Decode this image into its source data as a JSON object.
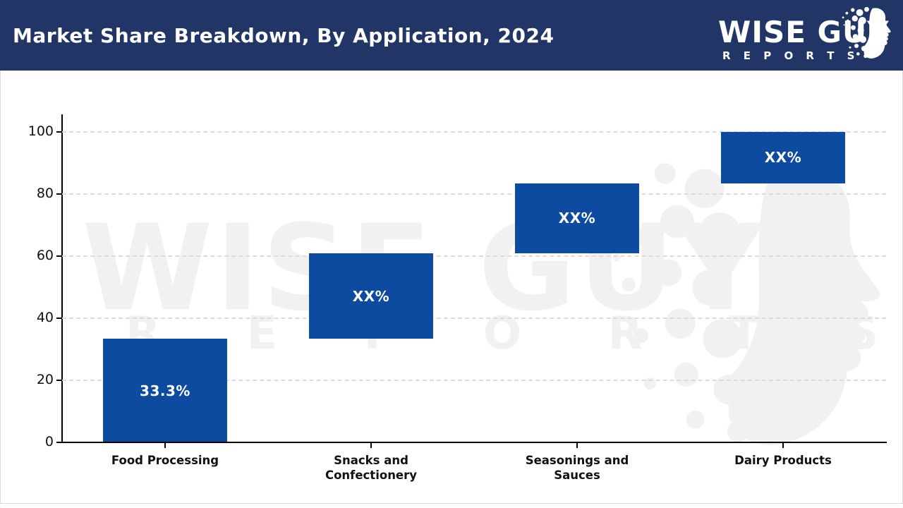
{
  "header": {
    "title": "Market Share Breakdown, By Application, 2024",
    "bg_color": "#213567",
    "logo": {
      "line1": "WISE GUY",
      "line2": "R E P O R T S"
    }
  },
  "watermark": {
    "line1": "WISE GUY",
    "line2": "R E P O R T S"
  },
  "chart_data": {
    "type": "bar",
    "subtype": "waterfall",
    "title": "Market Share Breakdown, By Application, 2024",
    "categories": [
      "Food Processing",
      "Snacks and\nConfectionery",
      "Seasonings and\nSauces",
      "Dairy Products"
    ],
    "segments": [
      {
        "label": "33.3%",
        "start": 0,
        "end": 33.3
      },
      {
        "label": "XX%",
        "start": 33.3,
        "end": 61
      },
      {
        "label": "XX%",
        "start": 61,
        "end": 83.5
      },
      {
        "label": "XX%",
        "start": 83.5,
        "end": 100
      }
    ],
    "ylim": [
      0,
      100
    ],
    "yticks": [
      0,
      20,
      40,
      60,
      80,
      100
    ],
    "grid": "dashed-horizontal",
    "bar_color": "#0c4b9f",
    "legend": "none"
  }
}
